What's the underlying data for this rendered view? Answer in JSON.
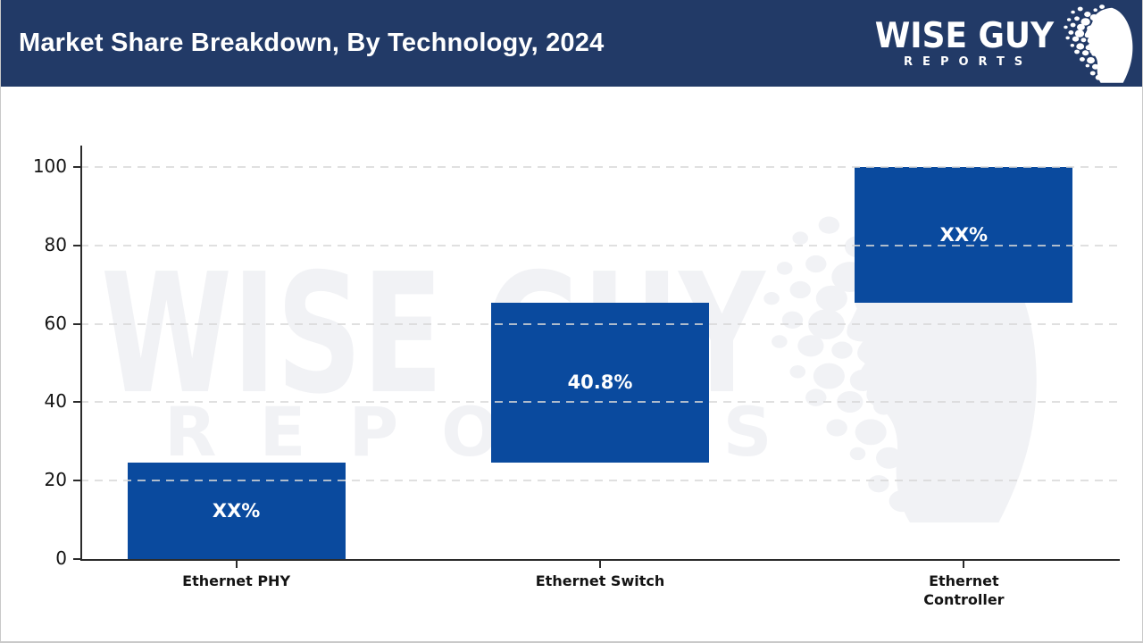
{
  "header": {
    "title": "Market Share Breakdown, By Technology, 2024",
    "logo": {
      "brand": "WISE GUY",
      "sub": "REPORTS"
    }
  },
  "watermark": {
    "brand": "WISE GUY",
    "sub": "REPORTS"
  },
  "colors": {
    "header_bg": "#223a67",
    "bar": "#0a4a9e",
    "grid": "#d8d8d8",
    "axis": "#2b2b2b",
    "watermark": "#f1f2f5"
  },
  "chart_data": {
    "type": "bar",
    "subtype": "floating-stacked-percentage",
    "title": "Market Share Breakdown, By Technology, 2024",
    "xlabel": "",
    "ylabel": "",
    "categories": [
      "Ethernet PHY",
      "Ethernet Switch",
      "Ethernet Controller"
    ],
    "category_lines": [
      [
        "Ethernet PHY"
      ],
      [
        "Ethernet Switch"
      ],
      [
        "Ethernet",
        "Controller"
      ]
    ],
    "segments": [
      {
        "category": "Ethernet PHY",
        "start": 0,
        "end": 24.6,
        "label": "XX%"
      },
      {
        "category": "Ethernet Switch",
        "start": 24.6,
        "end": 65.4,
        "label": "40.8%"
      },
      {
        "category": "Ethernet Controller",
        "start": 65.4,
        "end": 100,
        "label": "XX%"
      }
    ],
    "yticks": [
      0,
      20,
      40,
      60,
      80,
      100
    ],
    "ylim": [
      0,
      105
    ],
    "grid": "horizontal-dashed",
    "legend": "none"
  }
}
